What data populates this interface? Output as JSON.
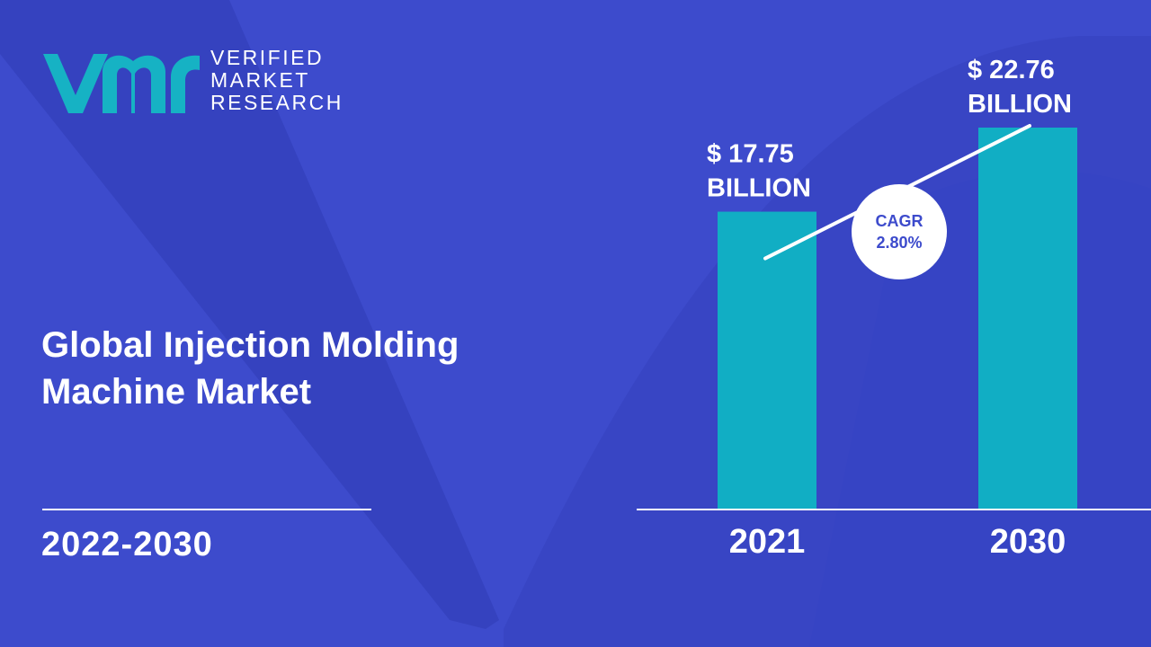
{
  "brand": {
    "line1": "VERIFIED",
    "line2": "MARKET",
    "line3": "RESEARCH",
    "mark_icon": "vmr-logo-icon",
    "mark_color": "#16b2c4"
  },
  "title": {
    "line1": "Global Injection Molding",
    "line2": "Machine Market"
  },
  "period": "2022-2030",
  "colors": {
    "background": "#3d4bcc",
    "background_shape": "#2f3cb4",
    "bar": "#11aec4",
    "text": "#ffffff"
  },
  "chart_data": {
    "type": "bar",
    "categories": [
      "2021",
      "2030"
    ],
    "values": [
      17.75,
      22.76
    ],
    "value_labels": [
      [
        "$ 17.75",
        "BILLION"
      ],
      [
        "$ 22.76",
        "BILLION"
      ]
    ],
    "cagr": {
      "label": "CAGR",
      "value": "2.80%"
    },
    "ylim": [
      0,
      22.76
    ],
    "grid": false,
    "legend": "none"
  }
}
